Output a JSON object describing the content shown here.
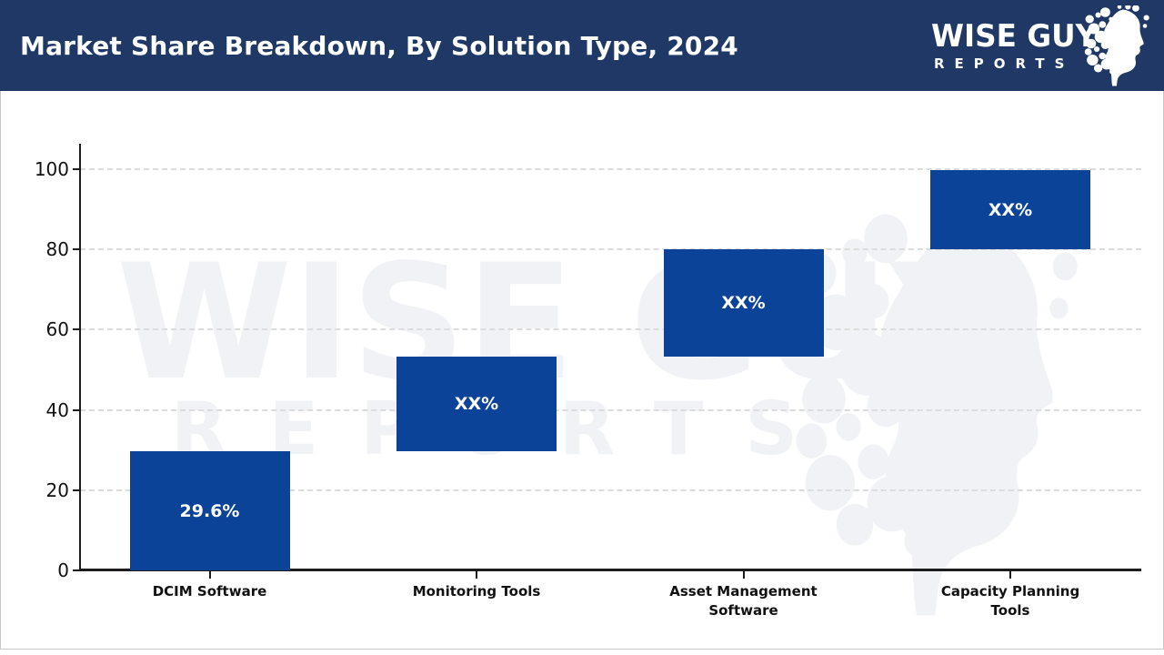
{
  "header": {
    "title": "Market Share Breakdown, By Solution Type, 2024",
    "logo": {
      "line1": "WISE GUY",
      "line2": "REPORTS"
    }
  },
  "watermark": {
    "line1": "WISE GUY",
    "line2": "REPORTS"
  },
  "chart_data": {
    "type": "bar",
    "subtype": "waterfall",
    "title": "Market Share Breakdown, By Solution Type, 2024",
    "categories": [
      "DCIM Software",
      "Monitoring Tools",
      "Asset Management Software",
      "Capacity Planning Tools"
    ],
    "series": [
      {
        "name": "Market share (%)",
        "segments": [
          {
            "category": "DCIM Software",
            "start": 0,
            "end": 29.6,
            "label": "29.6%"
          },
          {
            "category": "Monitoring Tools",
            "start": 29.6,
            "end": 53.3,
            "label": "XX%"
          },
          {
            "category": "Asset Management Software",
            "start": 53.3,
            "end": 80.0,
            "label": "XX%"
          },
          {
            "category": "Capacity Planning Tools",
            "start": 80.0,
            "end": 99.8,
            "label": "XX%"
          }
        ]
      }
    ],
    "yticks": [
      0,
      20,
      40,
      60,
      80,
      100
    ],
    "ylim": [
      0,
      105
    ],
    "xlabel": "",
    "ylabel": "",
    "grid": "horizontal-dashed",
    "legend": "none",
    "bar_color": "#0b4398",
    "bar_label_color": "#ffffff",
    "axis_color": "#1c1c1c",
    "grid_color": "#dcdcdc",
    "header_bg_color": "#1f3866",
    "watermark_color": "#f1f2f6"
  }
}
